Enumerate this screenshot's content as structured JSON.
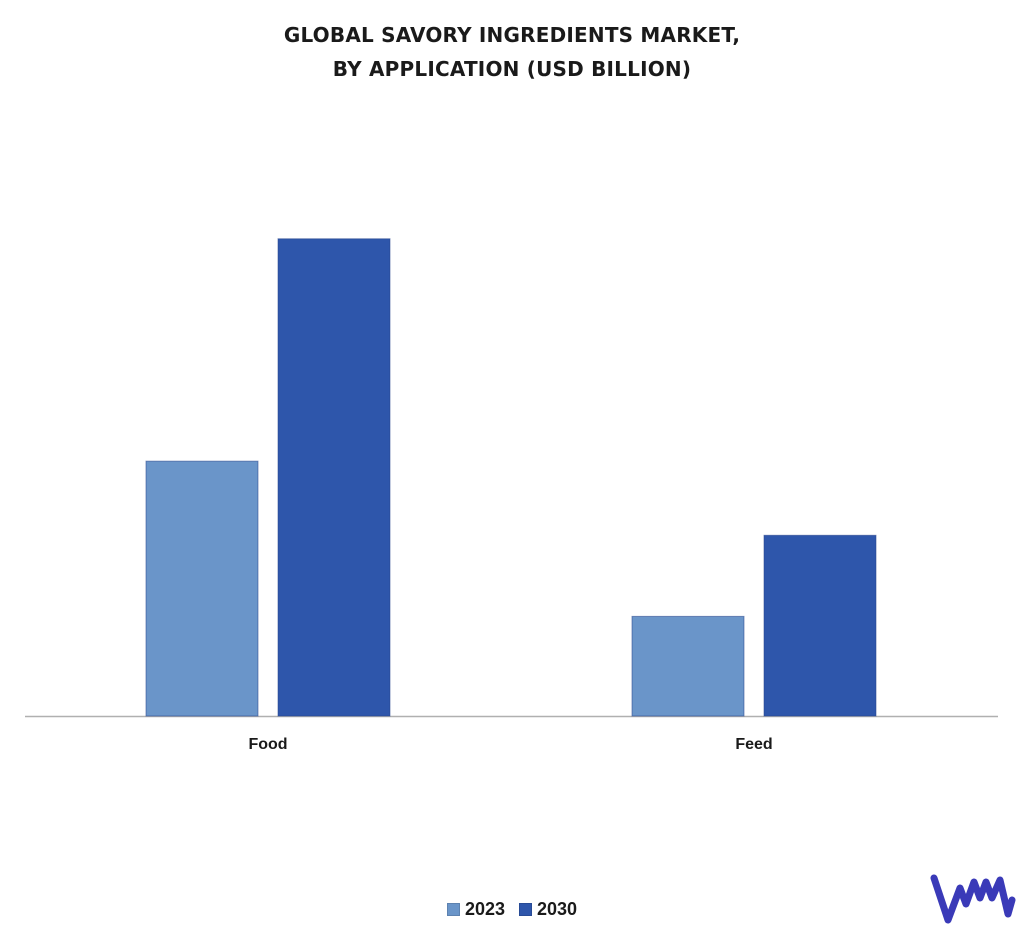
{
  "chart_data": {
    "type": "bar",
    "title_lines": [
      "GLOBAL SAVORY INGREDIENTS MARKET,",
      "BY APPLICATION (USD BILLION)"
    ],
    "categories": [
      "Food",
      "Feed"
    ],
    "series": [
      {
        "name": "2023",
        "values": [
          5.5,
          2.15
        ],
        "color": "#6a95c9"
      },
      {
        "name": "2030",
        "values": [
          10.3,
          3.9
        ],
        "color": "#2e56ab"
      }
    ],
    "ylim": [
      0,
      12
    ],
    "xlabel": "",
    "ylabel": "",
    "grid": false,
    "legend_position": "bottom-center"
  },
  "colors": {
    "axis": "#b0b0b0",
    "text": "#1a1a1a",
    "logo": "#3a3ab8"
  },
  "logo": {
    "icon": "vmr-logo-icon"
  }
}
